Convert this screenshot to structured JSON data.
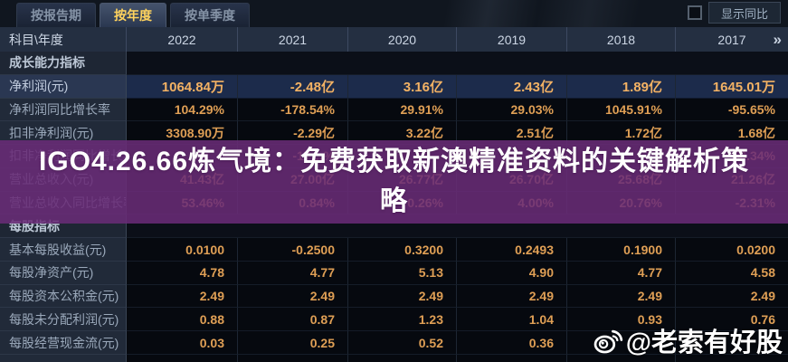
{
  "tabs": [
    {
      "label": "按报告期",
      "active": false
    },
    {
      "label": "按年度",
      "active": true
    },
    {
      "label": "按单季度",
      "active": false
    }
  ],
  "toolbar": {
    "show_yoy_label": "显示同比",
    "checkbox_checked": false
  },
  "table": {
    "corner_header": "科目\\年度",
    "years": [
      "2022",
      "2021",
      "2020",
      "2019",
      "2018",
      "2017"
    ],
    "more_label": "»",
    "rows": [
      {
        "type": "section",
        "label": "成长能力指标"
      },
      {
        "type": "data",
        "label": "净利润(元)",
        "highlight": true,
        "values": [
          "1064.84万",
          "-2.48亿",
          "3.16亿",
          "2.43亿",
          "1.89亿",
          "1645.01万"
        ]
      },
      {
        "type": "data",
        "label": "净利润同比增长率",
        "values": [
          "104.29%",
          "-178.54%",
          "29.91%",
          "29.03%",
          "1045.91%",
          "-95.65%"
        ]
      },
      {
        "type": "data",
        "label": "扣非净利润(元)",
        "values": [
          "3308.90万",
          "-2.29亿",
          "3.22亿",
          "2.51亿",
          "1.72亿",
          "1.68亿"
        ]
      },
      {
        "type": "data",
        "label": "扣非净利润同比增长率",
        "values": [
          "",
          "-17…%",
          "",
          "",
          "",
          "-56.34%"
        ]
      },
      {
        "type": "data",
        "label": "营业总收入(元)",
        "values": [
          "41.43亿",
          "27.00亿",
          "26.77亿",
          "26.70亿",
          "25.68亿",
          "21.26亿"
        ]
      },
      {
        "type": "data",
        "label": "营业总收入同比增长率",
        "values": [
          "53.46%",
          "0.84%",
          "0.26%",
          "4.00%",
          "20.76%",
          "-2.31%"
        ]
      },
      {
        "type": "section",
        "label": "每股指标"
      },
      {
        "type": "data",
        "label": "基本每股收益(元)",
        "values": [
          "0.0100",
          "-0.2500",
          "0.3200",
          "0.2493",
          "0.1900",
          "0.0200"
        ]
      },
      {
        "type": "data",
        "label": "每股净资产(元)",
        "values": [
          "4.78",
          "4.77",
          "5.13",
          "4.90",
          "4.77",
          "4.58"
        ]
      },
      {
        "type": "data",
        "label": "每股资本公积金(元)",
        "values": [
          "2.49",
          "2.49",
          "2.49",
          "2.49",
          "2.49",
          "2.49"
        ]
      },
      {
        "type": "data",
        "label": "每股未分配利润(元)",
        "values": [
          "0.88",
          "0.87",
          "1.23",
          "1.04",
          "0.93",
          "0.76"
        ]
      },
      {
        "type": "data",
        "label": "每股经营现金流(元)",
        "values": [
          "0.03",
          "0.25",
          "0.52",
          "0.36",
          "",
          ""
        ]
      },
      {
        "type": "data",
        "label": "",
        "partial": true,
        "values": [
          "",
          "",
          "",
          "",
          "",
          ""
        ]
      }
    ]
  },
  "overlay": {
    "line1": "IGO4.26.66炼气境：免费获取新澳精准资料的关键解析策",
    "line2": "略",
    "full_text": "IGO4.26.66炼气境：免费获取新澳精准资料的关键解析策略"
  },
  "watermark": {
    "icon": "weibo-icon",
    "text": "@老索有好股"
  },
  "colors": {
    "value_orange": "#df9f55",
    "highlight_orange": "#f3b264",
    "tab_active_text": "#ffd35e",
    "overlay_purple": "#6a2c78",
    "highlight_row_bg": "#1c2b4b"
  }
}
